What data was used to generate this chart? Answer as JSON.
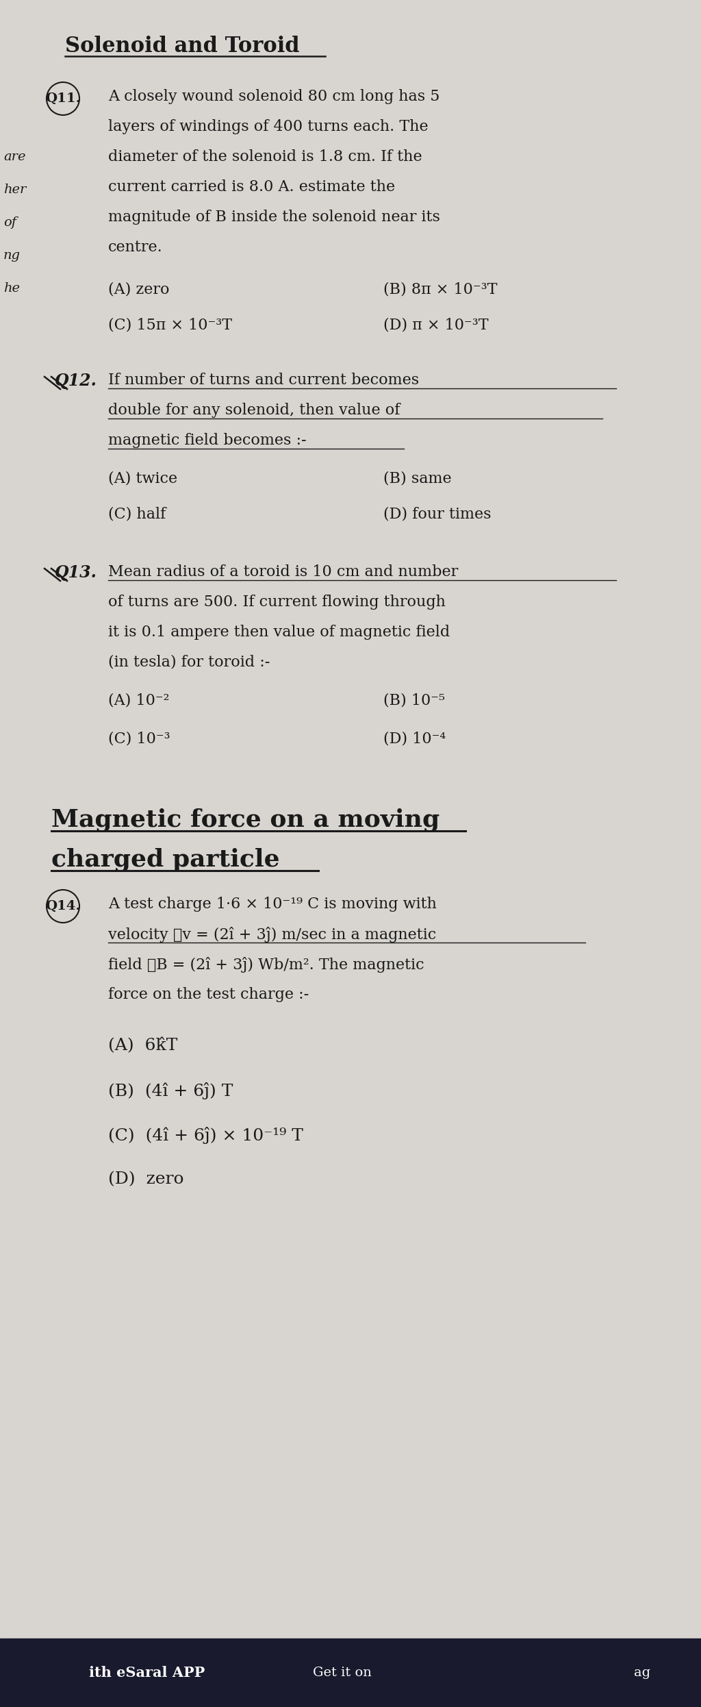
{
  "bg_color": "#d8d5d0",
  "text_color": "#1a1a1a",
  "page_width": 10.24,
  "page_height": 24.92,
  "section_title": "Solenoid and Toroid",
  "q11_text": "A closely wound solenoid 80 cm long has 5\nlayers of windings of 400 turns each. The\ndiameter of the solenoid is 1.8 cm. If the\ncurrent carried is 8.0 A. estimate the\nmagnitude of B inside the solenoid near its\ncentre.",
  "q11_options": [
    [
      "(A) zero",
      "(B) 8π × 10⁻³T"
    ],
    [
      "(C) 15π × 10⁻³T",
      "(D) π × 10⁻³T"
    ]
  ],
  "q12_text": "If number of turns and current becomes\ndouble for any solenoid, then value of\nmagnetic field becomes :-",
  "q12_options": [
    [
      "(A) twice",
      "(B) same"
    ],
    [
      "(C) half",
      "(D) four times"
    ]
  ],
  "q13_text": "Mean radius of a toroid is 10 cm and number\nof turns are 500. If current flowing through\nit is 0.1 ampere then value of magnetic field\n(in tesla) for toroid :-",
  "q13_options": [
    [
      "(A) 10⁻²",
      "(B) 10⁻⁵"
    ],
    [
      "(C) 10⁻³",
      "(D) 10⁻⁴"
    ]
  ],
  "section2_line1": "Magnetic force on a moving",
  "section2_line2": "charged particle",
  "q14_text_line1": "A test charge 1·6 × 10⁻¹⁹ C is moving with",
  "q14_text_line2": "velocity ⃗v = (2î + 3ĵ) m/sec in a magnetic",
  "q14_text_line3": "field ⃗B = (2î + 3ĵ) Wb/m². The magnetic",
  "q14_text_line4": "force on the test charge :-",
  "q14_options": [
    "(A)  6k̂T",
    "(B)  (4î + 6ĵ) T",
    "(C)  (4î + 6ĵ) × 10⁻¹⁹ T",
    "(D)  zero"
  ],
  "left_margin_text": [
    "are",
    "her",
    "of",
    "ng",
    "he"
  ],
  "left_margin_y": [
    220,
    268,
    316,
    364,
    412
  ],
  "footer_bg": "#1a1a2e",
  "footer_text_left": "ith eSaral APP",
  "footer_text_mid": "Get it on",
  "footer_text_right": "ag"
}
